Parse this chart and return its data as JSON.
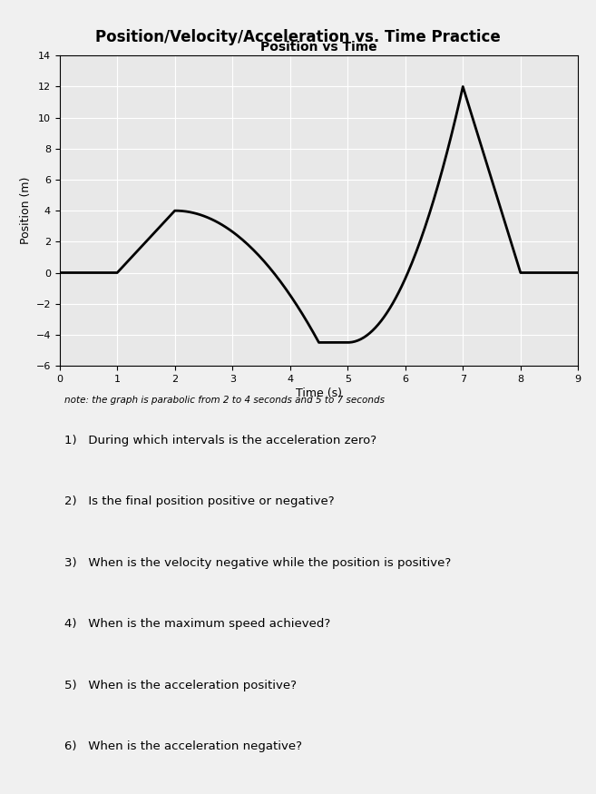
{
  "main_title": "Position/Velocity/Acceleration vs. Time Practice",
  "graph_title": "Position vs Time",
  "xlabel": "Time (s)",
  "ylabel": "Position (m)",
  "xlim": [
    0,
    9
  ],
  "ylim": [
    -6,
    14
  ],
  "yticks": [
    -6,
    -4,
    -2,
    0,
    2,
    4,
    6,
    8,
    10,
    12,
    14
  ],
  "xticks": [
    0,
    1,
    2,
    3,
    4,
    5,
    6,
    7,
    8,
    9
  ],
  "note": "note: the graph is parabolic from 2 to 4 seconds and 5 to 7 seconds",
  "questions": [
    "1)   During which intervals is the acceleration zero?",
    "2)   Is the final position positive or negative?",
    "3)   When is the velocity negative while the position is positive?",
    "4)   When is the maximum speed achieved?",
    "5)   When is the acceleration positive?",
    "6)   When is the acceleration negative?"
  ],
  "line_color": "black",
  "line_width": 2.0,
  "bg_color": "#f0f0f0",
  "plot_bg_color": "#e8e8e8",
  "grid_color": "white"
}
